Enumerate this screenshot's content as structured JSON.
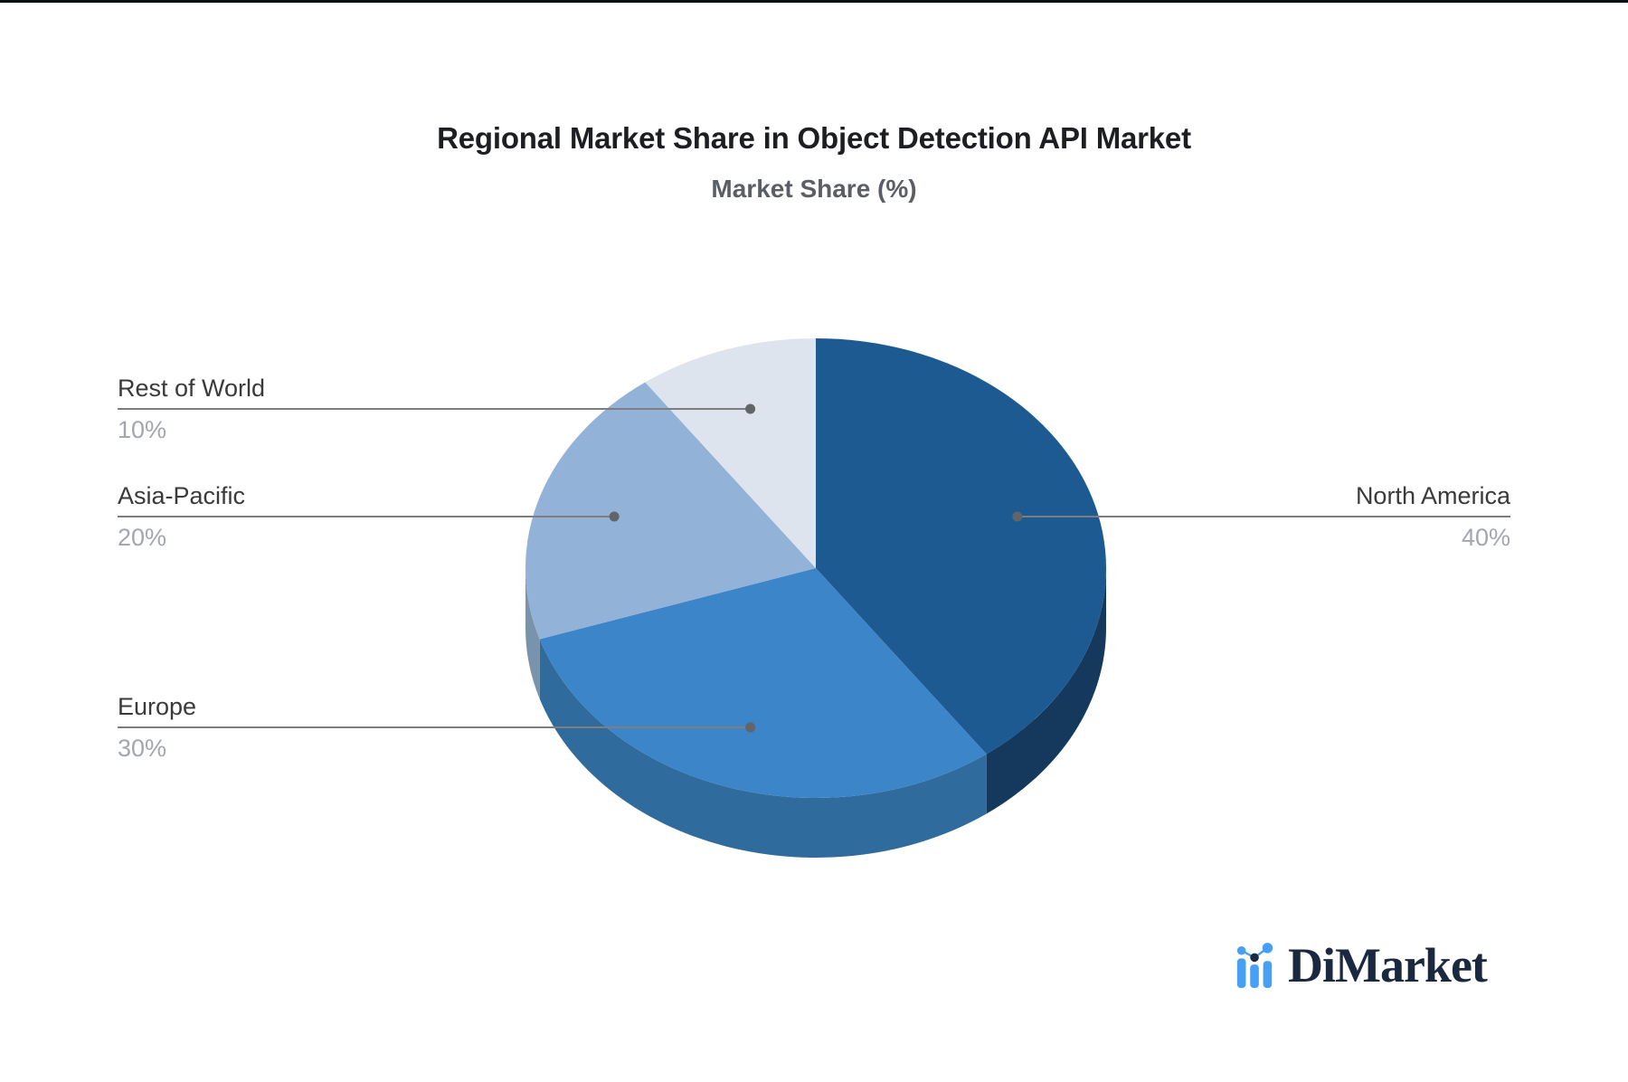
{
  "chart_data": {
    "type": "pie",
    "style": "3d-pie",
    "title": "Regional Market Share in Object Detection API Market",
    "subtitle": "Market Share (%)",
    "direction": "clockwise",
    "start_angle_deg": 0,
    "legend_position": "callout-labels",
    "segments": [
      {
        "label": "North America",
        "value": 40,
        "pct_label": "40%",
        "color": "#1e5a92",
        "side_color": "#14395d"
      },
      {
        "label": "Europe",
        "value": 30,
        "pct_label": "30%",
        "color": "#3b85c8",
        "side_color": "#2f6b9d"
      },
      {
        "label": "Asia-Pacific",
        "value": 20,
        "pct_label": "20%",
        "color": "#92b2d7",
        "side_color": "#7a93ad"
      },
      {
        "label": "Rest of World",
        "value": 10,
        "pct_label": "10%",
        "color": "#dde4ee",
        "side_color": "#b9c6d6"
      }
    ],
    "colors": {
      "leader_line": "#7e7e7e",
      "leader_dot": "#616569",
      "label_text": "#3a3a3a",
      "pct_text": "#a3a7ad",
      "title_text": "#1c1e21",
      "subtitle_text": "#5b5e63"
    }
  },
  "branding": {
    "logo_text": "DiMarket",
    "logo_icon": "bar-chart-trend-icon",
    "logo_text_color": "#1b2940",
    "logo_accent_color": "#47a0f4"
  }
}
